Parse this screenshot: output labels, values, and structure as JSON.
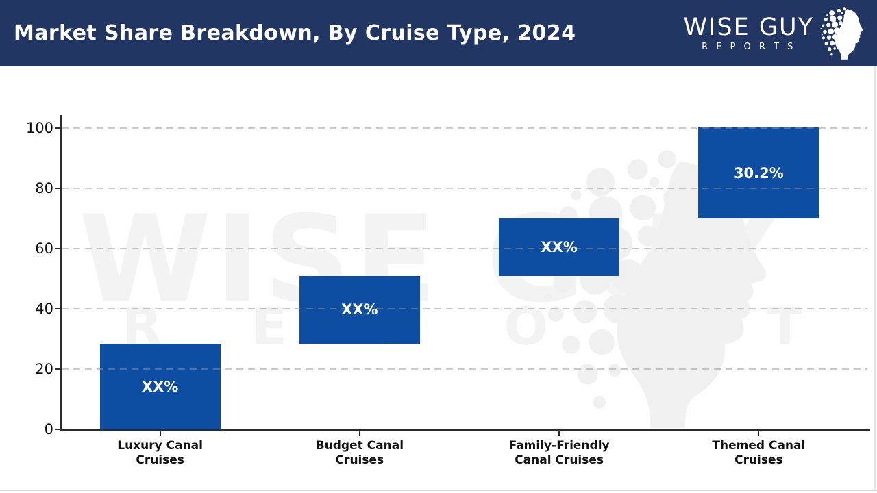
{
  "header": {
    "title": "Market Share Breakdown, By Cruise Type, 2024",
    "brand": {
      "name": "WISE GUY",
      "tagline": "R E P O R T S"
    }
  },
  "watermark": {
    "line1": "WISE GUY",
    "line2": "R E P O R T S"
  },
  "chart_data": {
    "type": "waterfall",
    "title": "Market Share Breakdown, By Cruise Type, 2024",
    "categories": [
      "Luxury Canal Cruises",
      "Budget Canal Cruises",
      "Family-Friendly Canal Cruises",
      "Themed Canal Cruises"
    ],
    "category_lines": [
      [
        "Luxury Canal",
        "Cruises"
      ],
      [
        "Budget Canal",
        "Cruises"
      ],
      [
        "Family-Friendly",
        "Canal Cruises"
      ],
      [
        "Themed Canal",
        "Cruises"
      ]
    ],
    "segments": [
      {
        "start": 0,
        "end": 28.4,
        "label": "XX%"
      },
      {
        "start": 28.4,
        "end": 51,
        "label": "XX%"
      },
      {
        "start": 51,
        "end": 70,
        "label": "XX%"
      },
      {
        "start": 70,
        "end": 100.2,
        "label": "30.2%"
      }
    ],
    "xlabel": "",
    "ylabel": "",
    "ylim": [
      0,
      100
    ],
    "yticks": [
      0,
      20,
      40,
      60,
      80,
      100
    ],
    "grid": "horizontal-dashed",
    "legend": "none",
    "colors": {
      "bar": "#0D4DA2",
      "bar_label": "#FFFFFF",
      "axis": "#2B2B2B",
      "tick_label": "#111111",
      "gridline": "#D9D9D9",
      "header_bg": "#213663",
      "watermark": "#F2F2F2"
    }
  }
}
